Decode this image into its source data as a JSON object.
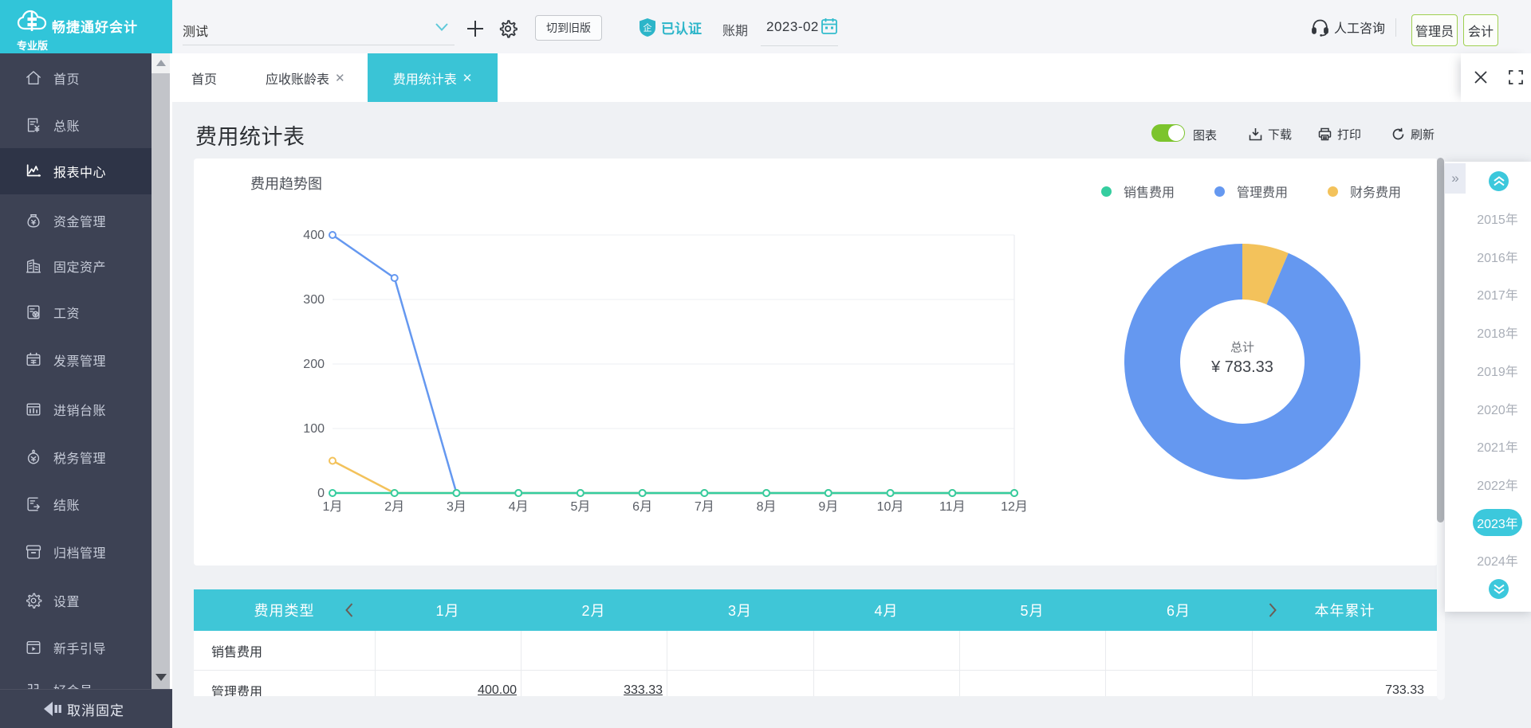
{
  "brand": {
    "title": "畅捷通好会计",
    "subtitle": "专业版"
  },
  "sidebar": {
    "items": [
      {
        "label": "首页",
        "icon": "home-icon",
        "active": false
      },
      {
        "label": "总账",
        "icon": "ledger-icon",
        "active": false
      },
      {
        "label": "报表中心",
        "icon": "report-center-icon",
        "active": true
      },
      {
        "label": "资金管理",
        "icon": "funds-icon",
        "active": false
      },
      {
        "label": "固定资产",
        "icon": "fixed-assets-icon",
        "active": false
      },
      {
        "label": "工资",
        "icon": "salary-icon",
        "active": false
      },
      {
        "label": "发票管理",
        "icon": "invoice-icon",
        "active": false
      },
      {
        "label": "进销台账",
        "icon": "purchase-sale-icon",
        "active": false
      },
      {
        "label": "税务管理",
        "icon": "tax-icon",
        "active": false
      },
      {
        "label": "结账",
        "icon": "closing-icon",
        "active": false
      },
      {
        "label": "归档管理",
        "icon": "archive-icon",
        "active": false
      },
      {
        "label": "设置",
        "icon": "settings-icon",
        "active": false
      },
      {
        "label": "新手引导",
        "icon": "guide-icon",
        "active": false
      },
      {
        "label": "好会员",
        "icon": "member-icon",
        "active": false
      }
    ],
    "unpin_label": "取消固定"
  },
  "topbar": {
    "account_set": "测试",
    "switch_old_label": "切到旧版",
    "verified_label": "已认证",
    "period_label": "账期",
    "period_value": "2023-02",
    "support_label": "人工咨询",
    "role_buttons": [
      "管理员",
      "会计"
    ]
  },
  "tabs": [
    {
      "label": "首页",
      "closable": false,
      "active": false
    },
    {
      "label": "应收账龄表",
      "closable": true,
      "active": false
    },
    {
      "label": "费用统计表",
      "closable": true,
      "active": true
    }
  ],
  "page": {
    "title": "费用统计表",
    "toolbar": {
      "chart_toggle_label": "图表",
      "chart_toggle_on": true,
      "toggle_color": "#7cc42d",
      "download_label": "下载",
      "print_label": "打印",
      "refresh_label": "刷新"
    }
  },
  "chart_data": [
    {
      "type": "line",
      "title": "费用趋势图",
      "categories": [
        "1月",
        "2月",
        "3月",
        "4月",
        "5月",
        "6月",
        "7月",
        "8月",
        "9月",
        "10月",
        "11月",
        "12月"
      ],
      "series": [
        {
          "name": "销售费用",
          "color": "#35cd9f",
          "values": [
            0,
            0,
            0,
            0,
            0,
            0,
            0,
            0,
            0,
            0,
            0,
            0
          ]
        },
        {
          "name": "管理费用",
          "color": "#6598f0",
          "values": [
            400,
            333.33,
            0,
            0,
            0,
            0,
            0,
            0,
            0,
            0,
            0,
            0
          ]
        },
        {
          "name": "财务费用",
          "color": "#f3c25b",
          "values": [
            50,
            0,
            0,
            0,
            0,
            0,
            0,
            0,
            0,
            0,
            0,
            0
          ]
        }
      ],
      "ylim": [
        0,
        400
      ],
      "yticks": [
        0,
        100,
        200,
        300,
        400
      ],
      "grid": true,
      "legend_position": "top-right"
    },
    {
      "type": "pie",
      "subtype": "donut",
      "center_label": "总计",
      "center_value": "¥ 783.33",
      "slices": [
        {
          "name": "财务费用",
          "value": 50,
          "color": "#f3c25b"
        },
        {
          "name": "管理费用",
          "value": 733.33,
          "color": "#6598f0"
        },
        {
          "name": "销售费用",
          "value": 0,
          "color": "#35cd9f"
        }
      ],
      "legend": [
        "销售费用",
        "管理费用",
        "财务费用"
      ],
      "legend_colors": [
        "#35cd9f",
        "#6598f0",
        "#f3c25b"
      ]
    }
  ],
  "table": {
    "columns": [
      "费用类型",
      "1月",
      "2月",
      "3月",
      "4月",
      "5月",
      "6月",
      "本年累计"
    ],
    "prev_arrow": "pagination-left",
    "next_arrow": "pagination-right",
    "rows": [
      {
        "label": "销售费用",
        "values": [
          "",
          "",
          "",
          "",
          "",
          "",
          ""
        ],
        "links": []
      },
      {
        "label": "管理费用",
        "values": [
          "400.00",
          "333.33",
          "",
          "",
          "",
          "",
          "733.33"
        ],
        "links": [
          0,
          1
        ]
      }
    ]
  },
  "year_panel": {
    "years": [
      "2015年",
      "2016年",
      "2017年",
      "2018年",
      "2019年",
      "2020年",
      "2021年",
      "2022年",
      "2023年",
      "2024年"
    ],
    "selected": "2023年",
    "selected_color": "#3cc8dc"
  }
}
